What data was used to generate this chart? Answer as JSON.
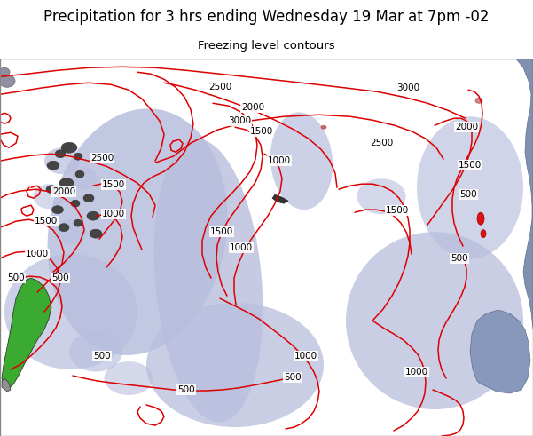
{
  "title": "Precipitation for 3 hrs ending Wednesday 19 Mar at 7pm -02",
  "subtitle": "Freezing level contours",
  "title_fontsize": 12,
  "subtitle_fontsize": 9.5,
  "bg_color": "#ccd2e8",
  "precip_light": "#b8bedd",
  "precip_mid": "#a8b0d0",
  "land_green": "#3aaa30",
  "land_gray": "#909090",
  "land_dark": "#707878",
  "contour_color": "#dd0000",
  "contour_lw": 1.1,
  "label_fs": 7.5,
  "fig_width": 6.01,
  "fig_height": 4.91,
  "dpi": 100
}
